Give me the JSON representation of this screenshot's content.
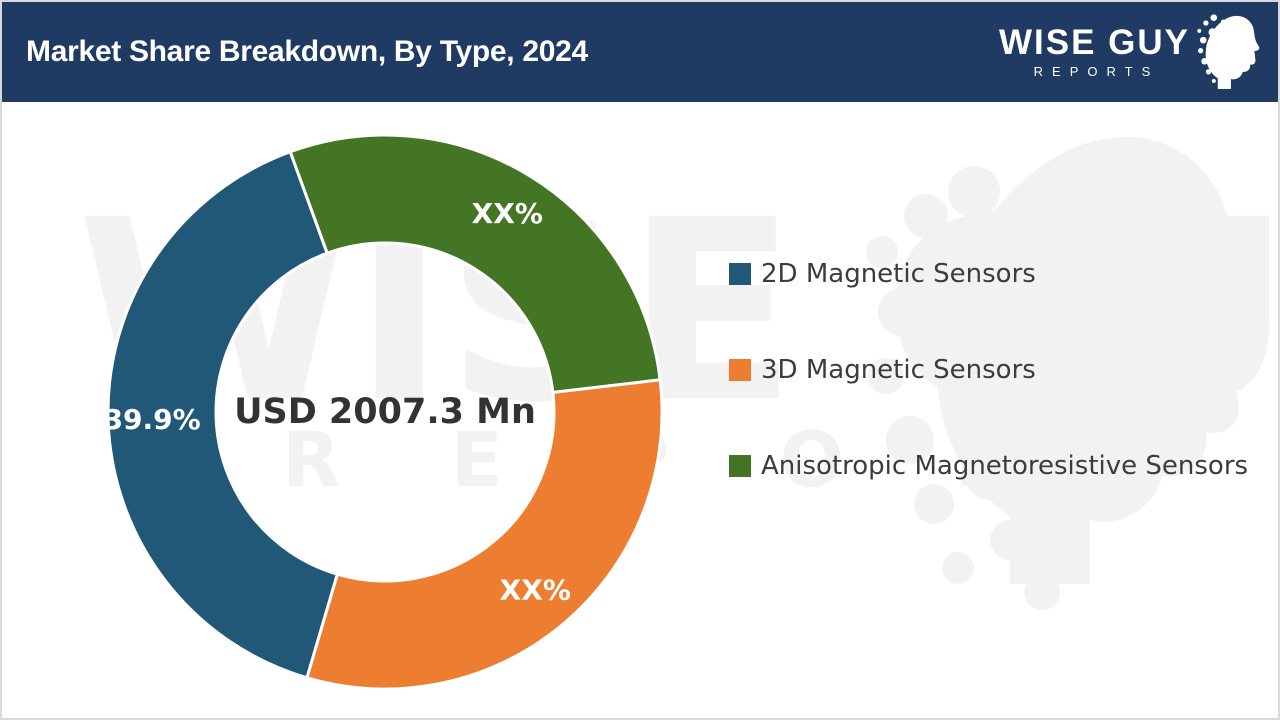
{
  "header": {
    "title": "Market Share Breakdown, By Type, 2024",
    "bg_color": "#1f3a63",
    "logo": {
      "line1": "WISE GUY",
      "line2": "REPORTS"
    }
  },
  "watermark": {
    "line1": "WISE GUY",
    "line2": "R E P O R T S"
  },
  "chart_data": {
    "type": "pie",
    "subtype": "donut",
    "title": "Market Share Breakdown, By Type, 2024",
    "center_label": "USD 2007.3 Mn",
    "start_angle_deg": 110,
    "direction": "counterclockwise",
    "outer_radius_px": 277,
    "inner_radius_px": 169,
    "legend_position": "right",
    "segments": [
      {
        "label": "2D Magnetic Sensors",
        "display_value": "39.9%",
        "share_pct_est": 39.9,
        "color": "#215878"
      },
      {
        "label": "3D Magnetic Sensors",
        "display_value": "XX%",
        "share_pct_est": 31.4,
        "color": "#ed7d31"
      },
      {
        "label": "Anisotropic Magnetoresistive Sensors",
        "display_value": "XX%",
        "share_pct_est": 28.7,
        "color": "#447524"
      }
    ]
  },
  "colors": {
    "header_bg": "#1f3a63",
    "watermark": "#f2f2f2",
    "legend_text": "#3c3c3c",
    "center_text": "#333333",
    "page_border": "#d9d9d9"
  }
}
